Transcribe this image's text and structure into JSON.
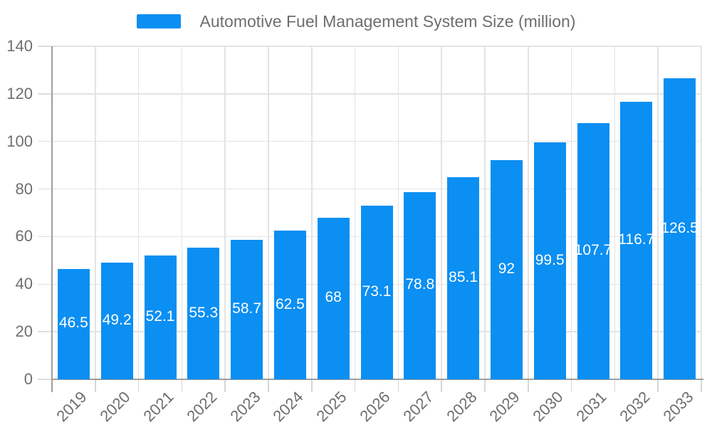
{
  "legend": {
    "label": "Automotive Fuel Management System Size (million)"
  },
  "chart_data": {
    "type": "bar",
    "title": "Automotive Fuel Management System Size (million)",
    "series_name": "Automotive Fuel Management System Size (million)",
    "categories": [
      "2019",
      "2020",
      "2021",
      "2022",
      "2023",
      "2024",
      "2025",
      "2026",
      "2027",
      "2028",
      "2029",
      "2030",
      "2031",
      "2032",
      "2033"
    ],
    "values": [
      46.5,
      49.2,
      52.1,
      55.3,
      58.7,
      62.5,
      68,
      73.1,
      78.8,
      85.1,
      92,
      99.5,
      107.7,
      116.7,
      126.5
    ],
    "xlabel": "",
    "ylabel": "",
    "ylim": [
      0,
      140
    ],
    "yticks": [
      0,
      20,
      40,
      60,
      80,
      100,
      120,
      140
    ],
    "grid": true,
    "legend_position": "top",
    "bar_labels_inside": true,
    "x_label_rotation_deg": -45,
    "colors": {
      "bar": "#0b8ff2",
      "bar_value_text": "#ffffff",
      "axis_text": "#6e6e6e",
      "legend_text": "#6e6e6e",
      "grid_line": "#e3e3e3",
      "tick_mark": "#d6d6d6",
      "axis_line": "#9e9e9e",
      "background": "#ffffff"
    }
  }
}
